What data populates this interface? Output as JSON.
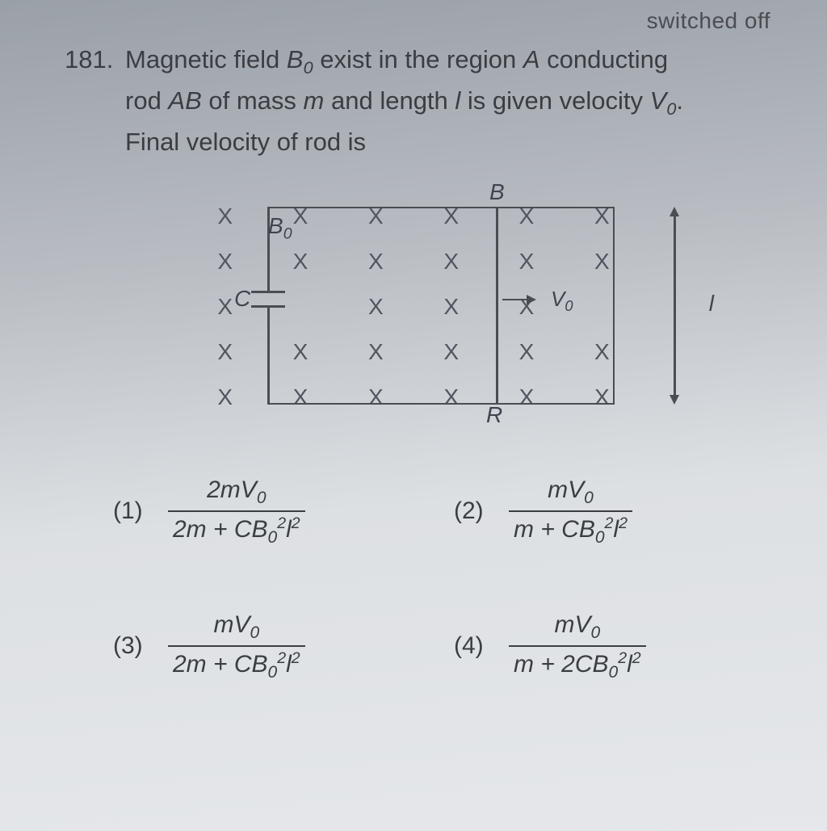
{
  "header_fragment": "switched off",
  "question": {
    "number": "181.",
    "line1_a": "Magnetic field ",
    "line1_b": " exist in the region ",
    "line1_c": " conducting",
    "line2_a": "rod ",
    "line2_b": " of mass ",
    "line2_c": " and length ",
    "line2_d": " is given velocity ",
    "line3": "Final velocity of rod is",
    "sym_B0_base": "B",
    "sym_B0_sub": "0",
    "sym_A": "A",
    "sym_AB": "AB",
    "sym_m": "m",
    "sym_l": "l",
    "sym_V0_base": "V",
    "sym_V0_sub": "0",
    "sym_dot": "."
  },
  "diagram": {
    "x_symbol": "X",
    "label_B0_base": "B",
    "label_B0_sub": "0",
    "label_C": "C",
    "label_B": "B",
    "label_R": "R",
    "label_V0_base": "V",
    "label_V0_sub": "0",
    "label_l": "l"
  },
  "options": {
    "opt1_num": "(1)",
    "opt2_num": "(2)",
    "opt3_num": "(3)",
    "opt4_num": "(4)",
    "f_2mV0": "2mV",
    "f_mV0": "mV",
    "sub0": "0",
    "den_2m_CB02l2_a": "2m + CB",
    "den_m_CB02l2_a": "m + CB",
    "den_m_2CB02l2_a": "m + 2CB",
    "sup2": "2",
    "l_char": "l"
  },
  "style": {
    "text_color": "#3a3d42",
    "line_color": "#4a4d52"
  }
}
